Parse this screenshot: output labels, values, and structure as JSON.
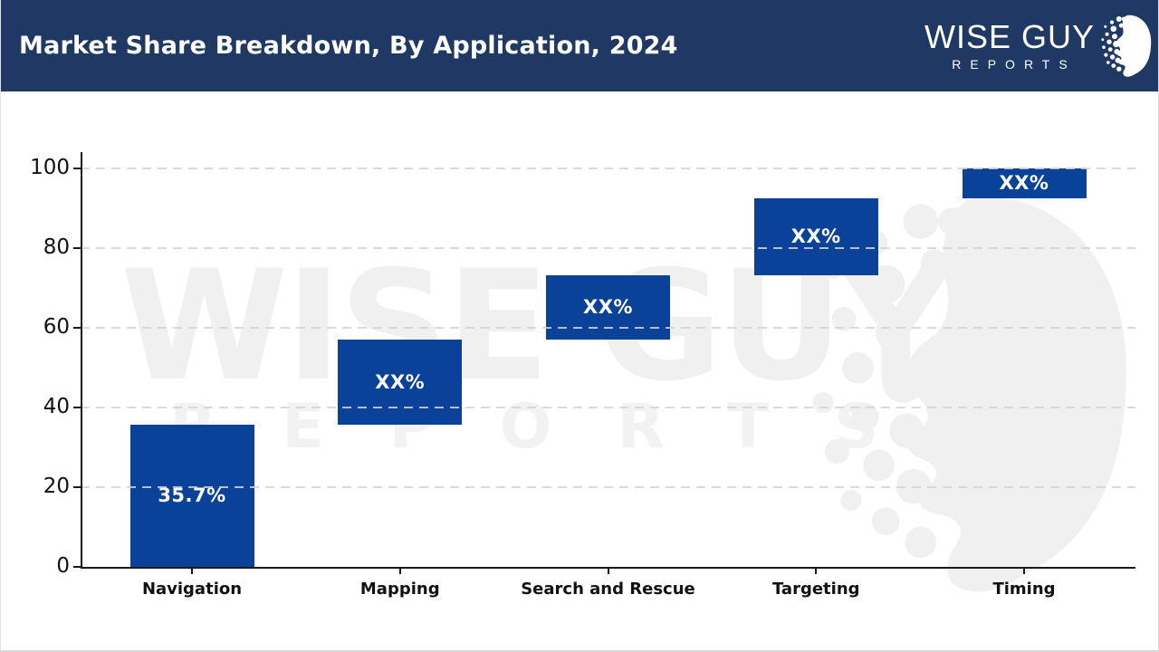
{
  "header": {
    "title": "Market Share Breakdown, By Application, 2024",
    "brand": {
      "line1": "WISE GUY",
      "line2": "REPORTS"
    }
  },
  "watermark": {
    "line1": "WISE GUY",
    "line2": "REPORTS"
  },
  "colors": {
    "header_bg": "#1f3864",
    "bar": "#0b4299",
    "grid": "#d4d4d4",
    "axis": "#1a1a1a",
    "bar_label": "#ffffff",
    "watermark": "#f0f0f0",
    "background": "#ffffff"
  },
  "chart_data": {
    "type": "bar",
    "subtype": "waterfall",
    "title": "Market Share Breakdown, By Application, 2024",
    "categories": [
      "Navigation",
      "Mapping",
      "Search and Rescue",
      "Targeting",
      "Timing"
    ],
    "segments": [
      {
        "category": "Navigation",
        "start": 0,
        "end": 35.7,
        "value": 35.7,
        "label": "35.7%"
      },
      {
        "category": "Mapping",
        "start": 35.7,
        "end": 57.1,
        "value": 21.4,
        "label": "XX%"
      },
      {
        "category": "Search and Rescue",
        "start": 57.1,
        "end": 73.2,
        "value": 16.1,
        "label": "XX%"
      },
      {
        "category": "Targeting",
        "start": 73.2,
        "end": 92.6,
        "value": 19.4,
        "label": "XX%"
      },
      {
        "category": "Timing",
        "start": 92.6,
        "end": 100.0,
        "value": 7.4,
        "label": "XX%"
      }
    ],
    "yticks": [
      0,
      20,
      40,
      60,
      80,
      100
    ],
    "ytick_labels": [
      "0",
      "20",
      "40",
      "60",
      "80",
      "100"
    ],
    "ylim": [
      0,
      104
    ],
    "xlabel": "",
    "ylabel": "",
    "grid": "horizontal-dashed",
    "legend": "none"
  }
}
